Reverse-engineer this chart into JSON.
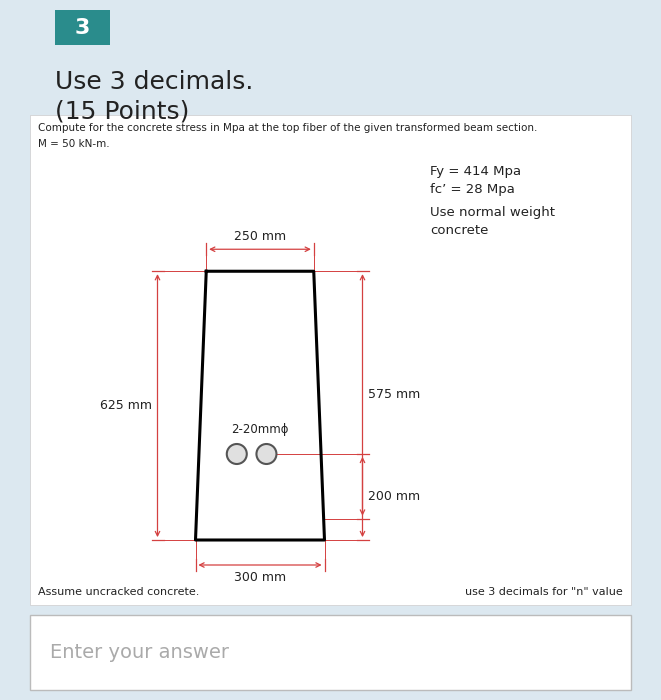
{
  "bg_color": "#dce8f0",
  "white_bg": "#ffffff",
  "teal_color": "#2a8c8c",
  "number_label": "3",
  "heading_line1": "Use 3 decimals.",
  "heading_line2": "(15 Points)",
  "problem_text_line1": "Compute for the concrete stress in Mpa at the top fiber of the given transformed beam section.",
  "problem_text_line2": "M = 50 kN-m.",
  "dim_top": "250 mm",
  "dim_height_right": "575 mm",
  "dim_total_height": "625 mm",
  "dim_bottom": "300 mm",
  "dim_steel_from_bottom": "200 mm",
  "steel_label": "2-20mmϕ",
  "prop_fy": "Fy = 414 Mpa",
  "prop_fc": "fc’ = 28 Mpa",
  "prop_concrete": "Use normal weight",
  "prop_concrete2": "concrete",
  "note_left": "Assume uncracked concrete.",
  "note_right": "use 3 decimals for \"n\" value",
  "answer_placeholder": "Enter your answer",
  "red_color": "#d44040"
}
